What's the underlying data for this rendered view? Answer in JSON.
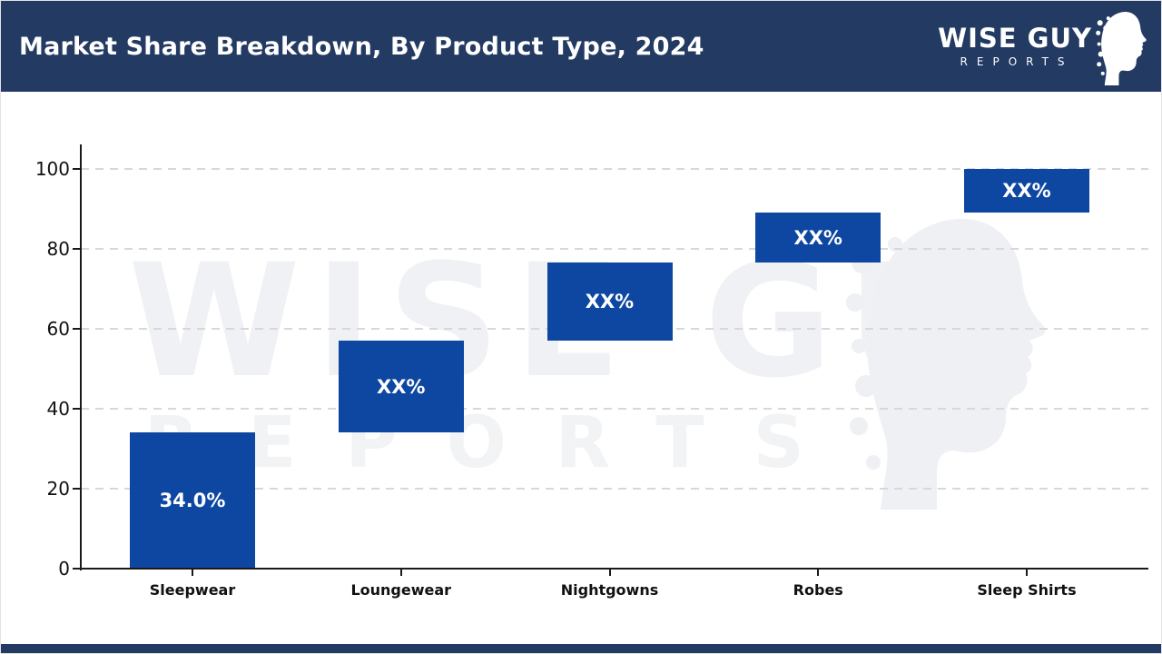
{
  "header": {
    "title": "Market Share Breakdown, By Product Type, 2024",
    "logo": {
      "name": "WISE GUY",
      "tagline": "REPORTS"
    }
  },
  "watermark": {
    "line1": "WISE GU",
    "line2": "REPORTS"
  },
  "colors": {
    "header_bg": "#233a63",
    "footer_bg": "#233a63",
    "bar": "#0d47a1",
    "grid": "#d8d8d8",
    "axis": "#1a1a1a",
    "watermark": "#f0f1f4",
    "bar_label": "#ffffff"
  },
  "chart_data": {
    "type": "bar",
    "subtype": "waterfall",
    "title": "Market Share Breakdown, By Product Type, 2024",
    "categories": [
      "Sleepwear",
      "Loungewear",
      "Nightgowns",
      "Robes",
      "Sleep Shirts"
    ],
    "segments": [
      {
        "category": "Sleepwear",
        "start": 0,
        "end": 34,
        "value": 34,
        "label": "34.0%"
      },
      {
        "category": "Loungewear",
        "start": 34,
        "end": 57,
        "value": 23,
        "label": "XX%"
      },
      {
        "category": "Nightgowns",
        "start": 57,
        "end": 76.5,
        "value": 19.5,
        "label": "XX%"
      },
      {
        "category": "Robes",
        "start": 76.5,
        "end": 89,
        "value": 12.5,
        "label": "XX%"
      },
      {
        "category": "Sleep Shirts",
        "start": 89,
        "end": 100,
        "value": 11,
        "label": "XX%"
      }
    ],
    "yticks": [
      0,
      20,
      40,
      60,
      80,
      100
    ],
    "ylim": [
      0,
      105
    ],
    "xlabel": "",
    "ylabel": "",
    "grid": "horizontal dashed",
    "legend": null
  }
}
